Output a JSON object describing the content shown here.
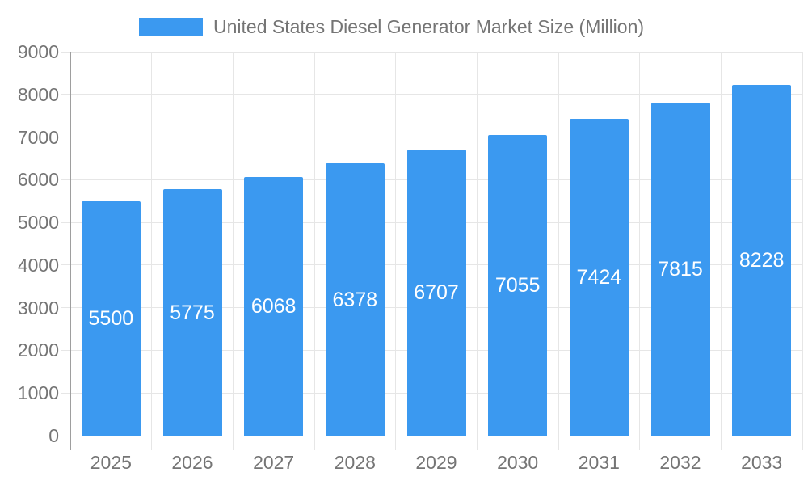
{
  "legend": {
    "swatch_color": "#3B99F0"
  },
  "chart_data": {
    "type": "bar",
    "title": "United States Diesel Generator Market Size (Million)",
    "categories": [
      "2025",
      "2026",
      "2027",
      "2028",
      "2029",
      "2030",
      "2031",
      "2032",
      "2033"
    ],
    "values": [
      5500,
      5775,
      6068,
      6378,
      6707,
      7055,
      7424,
      7815,
      8228
    ],
    "xlabel": "",
    "ylabel": "",
    "ylim": [
      0,
      9000
    ],
    "yticks": [
      0,
      1000,
      2000,
      3000,
      4000,
      5000,
      6000,
      7000,
      8000,
      9000
    ],
    "grid": true,
    "legend_position": "top",
    "value_labels": "inside-center-white",
    "bar_color": "#3B99F0",
    "grid_color": "#E6E6E6",
    "axis_color": "#9E9E9E",
    "text_color": "#757575",
    "value_label_color": "#FFFFFF"
  }
}
